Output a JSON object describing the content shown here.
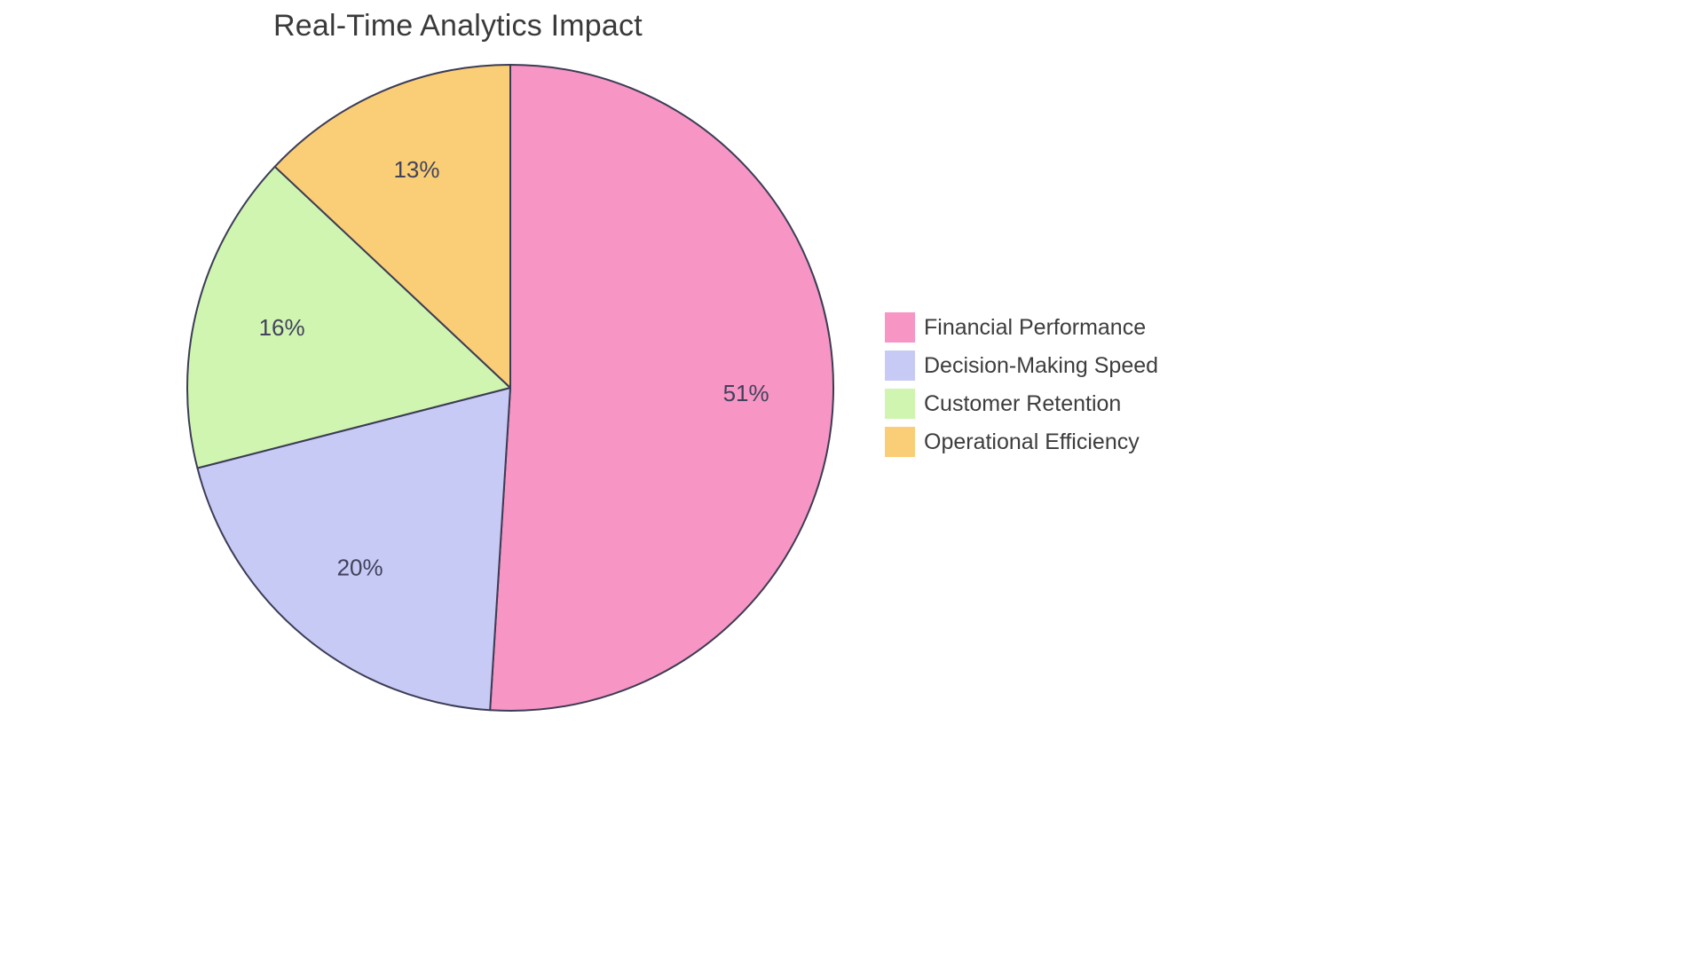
{
  "page": {
    "background_color": "#FFFFFF"
  },
  "chart_data": {
    "type": "pie",
    "title": "Real-Time Analytics Impact",
    "categories": [
      "Financial Performance",
      "Decision-Making Speed",
      "Customer Retention",
      "Operational Efficiency"
    ],
    "values": [
      51,
      20,
      16,
      13
    ],
    "percent_labels": [
      "51%",
      "20%",
      "16%",
      "13%"
    ],
    "colors": [
      "#F795C5",
      "#C7CAF5",
      "#D0F5B1",
      "#F9CE76"
    ],
    "stroke_color": "#3C3C55",
    "label_color": "#42425C",
    "start_angle_deg": 0,
    "direction": "clockwise",
    "legend_position": "right",
    "legend": [
      {
        "label": "Financial Performance",
        "color": "#F795C5"
      },
      {
        "label": "Decision-Making Speed",
        "color": "#C7CAF5"
      },
      {
        "label": "Customer Retention",
        "color": "#D0F5B1"
      },
      {
        "label": "Operational Efficiency",
        "color": "#F9CE76"
      }
    ]
  }
}
